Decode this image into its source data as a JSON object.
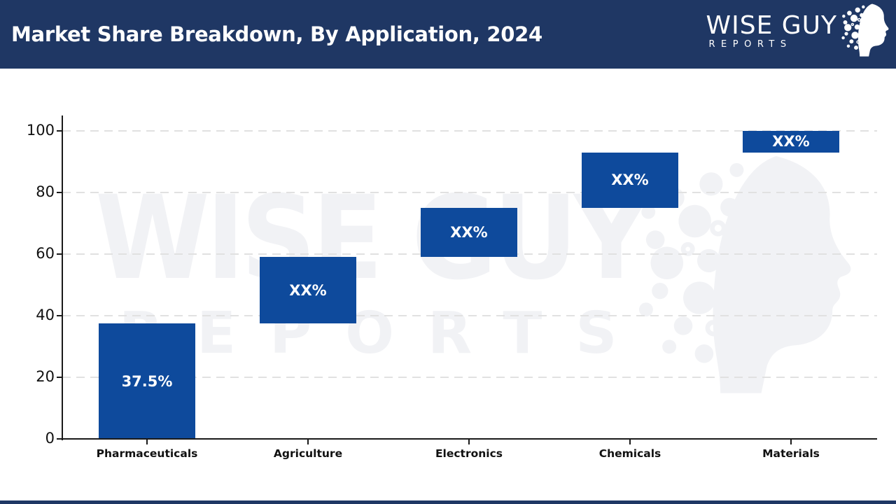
{
  "header": {
    "title": "Market Share Breakdown, By Application, 2024",
    "logo": {
      "line1": "WISE GUY",
      "line2": "REPORTS"
    }
  },
  "watermark": {
    "line1": "WISE GUY",
    "line2": "REPORTS"
  },
  "theme": {
    "header_bg": "#1f3764",
    "footer_bg": "#1f3764",
    "bar_color": "#0e4a9c",
    "bar_label_color": "#ffffff",
    "grid_color": "#e1e1e1",
    "axis_color": "#1a1a1a",
    "title_color": "#ffffff",
    "watermark_color": "#f1f2f5"
  },
  "chart_data": {
    "type": "bar",
    "subtype": "waterfall",
    "title": "Market Share Breakdown, By Application, 2024",
    "categories": [
      "Pharmaceuticals",
      "Agriculture",
      "Electronics",
      "Chemicals",
      "Materials"
    ],
    "segments": [
      {
        "category": "Pharmaceuticals",
        "start": 0,
        "end": 37.5,
        "value": 37.5,
        "label": "37.5%"
      },
      {
        "category": "Agriculture",
        "start": 37.5,
        "end": 59,
        "value": 21.5,
        "label": "XX%"
      },
      {
        "category": "Electronics",
        "start": 59,
        "end": 75,
        "value": 16,
        "label": "XX%"
      },
      {
        "category": "Chemicals",
        "start": 75,
        "end": 93,
        "value": 18,
        "label": "XX%"
      },
      {
        "category": "Materials",
        "start": 93,
        "end": 100,
        "value": 7,
        "label": "XX%"
      }
    ],
    "y_ticks": [
      0,
      20,
      40,
      60,
      80,
      100
    ],
    "ylim": [
      0,
      105
    ],
    "xlabel": "",
    "ylabel": "",
    "grid": "dashed-horizontal",
    "legend": "none"
  }
}
